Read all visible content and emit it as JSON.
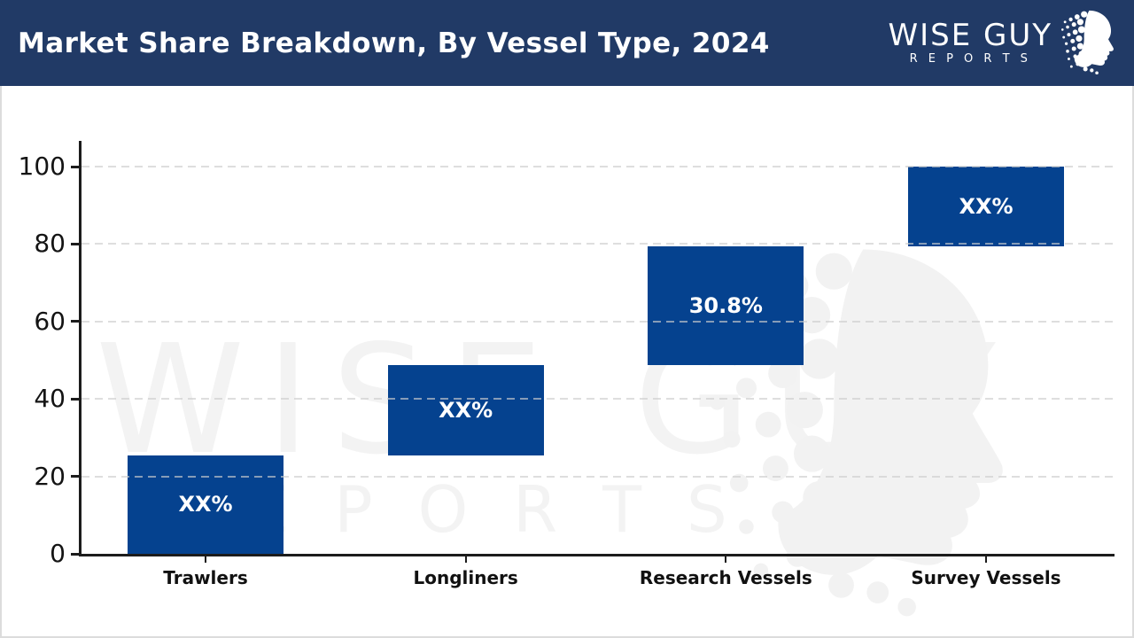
{
  "header": {
    "title": "Market Share Breakdown, By Vessel Type, 2024",
    "bg": "#213a66",
    "logo": {
      "name": "WISE GUY",
      "tagline": "R E P O R T S"
    }
  },
  "watermark": {
    "name": "WISE GUY",
    "tagline": "R E P O R T S"
  },
  "chart_data": {
    "type": "bar",
    "subtype": "waterfall-floating-segments",
    "title": "Market Share Breakdown, By Vessel Type, 2024",
    "categories": [
      "Trawlers",
      "Longliners",
      "Research Vessels",
      "Survey Vessels"
    ],
    "segments": [
      {
        "category": "Trawlers",
        "start": 0,
        "end": 25.4,
        "value_label": "XX%"
      },
      {
        "category": "Longliners",
        "start": 25.4,
        "end": 48.7,
        "value_label": "XX%"
      },
      {
        "category": "Research Vessels",
        "start": 48.7,
        "end": 79.5,
        "value_label": "30.8%"
      },
      {
        "category": "Survey Vessels",
        "start": 79.5,
        "end": 100,
        "value_label": "XX%"
      }
    ],
    "xlabel": "",
    "ylabel": "",
    "ylim": [
      0,
      100
    ],
    "yticks": [
      0,
      20,
      40,
      60,
      80,
      100
    ],
    "grid": {
      "axis": "y",
      "style": "dashed",
      "color": "#e0e0e0"
    },
    "legend": "none",
    "bar_color": "#05428f",
    "bar_label_color": "#ffffff",
    "axis_color": "#1c1c1c"
  }
}
